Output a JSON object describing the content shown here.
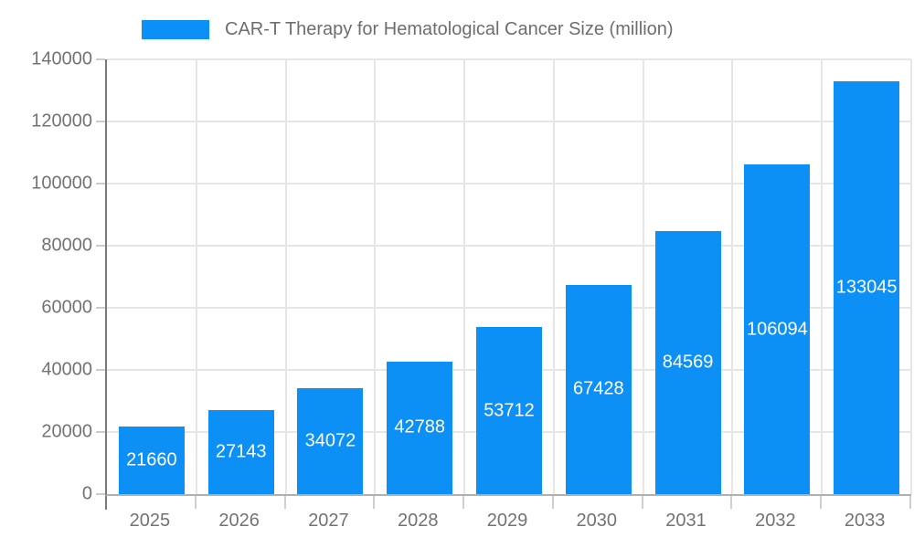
{
  "chart_data": {
    "type": "bar",
    "title": "CAR-T Therapy for Hematological Cancer Size (million)",
    "categories": [
      "2025",
      "2026",
      "2027",
      "2028",
      "2029",
      "2030",
      "2031",
      "2032",
      "2033"
    ],
    "values": [
      21660,
      27143,
      34072,
      42788,
      53712,
      67428,
      84569,
      106094,
      133045
    ],
    "value_labels": [
      "21660",
      "27143",
      "34072",
      "42788",
      "53712",
      "67428",
      "84569",
      "106094",
      "133045"
    ],
    "xlabel": "",
    "ylabel": "",
    "ylim": [
      0,
      140000
    ],
    "yticks": [
      0,
      20000,
      40000,
      60000,
      80000,
      100000,
      120000,
      140000
    ],
    "ytick_labels": [
      "0",
      "20000",
      "40000",
      "60000",
      "80000",
      "100000",
      "120000",
      "140000"
    ],
    "grid": true,
    "legend_position": "top",
    "colors": {
      "bar": "#0d90f6",
      "bar_value_label": "#ffffff",
      "axis_label": "#737373",
      "title_text": "#6e6e6e",
      "gridline": "#e6e6e6",
      "baseline": "#b0b0b0",
      "y_axis_line": "#7a7a7a"
    }
  }
}
